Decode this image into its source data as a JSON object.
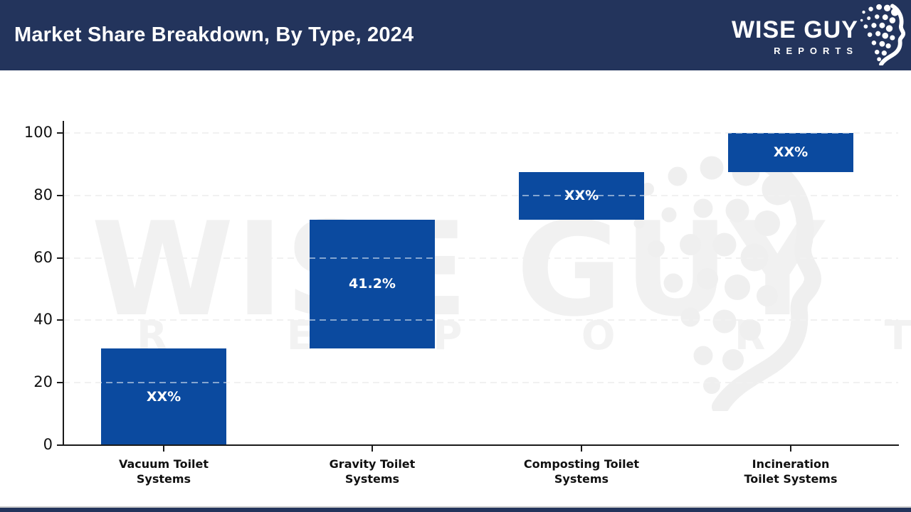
{
  "header": {
    "title": "Market Share Breakdown, By Type, 2024",
    "logo_line1": "WISE GUY",
    "logo_line2": "REPORTS"
  },
  "watermark": {
    "line1": "WISE GUY",
    "line2": "R E P O R T S"
  },
  "colors": {
    "header_bg": "#23345c",
    "bar": "#0b4a9f",
    "grid": "#e3e3e3",
    "axis": "#1a1a1a",
    "bar_label_text": "#ffffff"
  },
  "chart_data": {
    "type": "bar",
    "subtype": "waterfall",
    "title": "Market Share Breakdown, By Type, 2024",
    "categories": [
      "Vacuum Toilet Systems",
      "Gravity Toilet Systems",
      "Composting Toilet Systems",
      "Incineration Toilet Systems"
    ],
    "category_lines": [
      [
        "Vacuum Toilet",
        "Systems"
      ],
      [
        "Gravity Toilet",
        "Systems"
      ],
      [
        "Composting Toilet",
        "Systems"
      ],
      [
        "Incineration",
        "Toilet Systems"
      ]
    ],
    "bars": [
      {
        "start": 0,
        "end": 31,
        "value": 31,
        "label": "XX%"
      },
      {
        "start": 31,
        "end": 72.2,
        "value": 41.2,
        "label": "41.2%"
      },
      {
        "start": 72.2,
        "end": 87.5,
        "value": 15.3,
        "label": "XX%"
      },
      {
        "start": 87.5,
        "end": 100,
        "value": 12.5,
        "label": "XX%"
      }
    ],
    "yticks": [
      0,
      20,
      40,
      60,
      80,
      100
    ],
    "ylim": [
      0,
      100
    ],
    "xlabel": "",
    "ylabel": "",
    "grid": "dashed horizontal",
    "legend": null
  }
}
